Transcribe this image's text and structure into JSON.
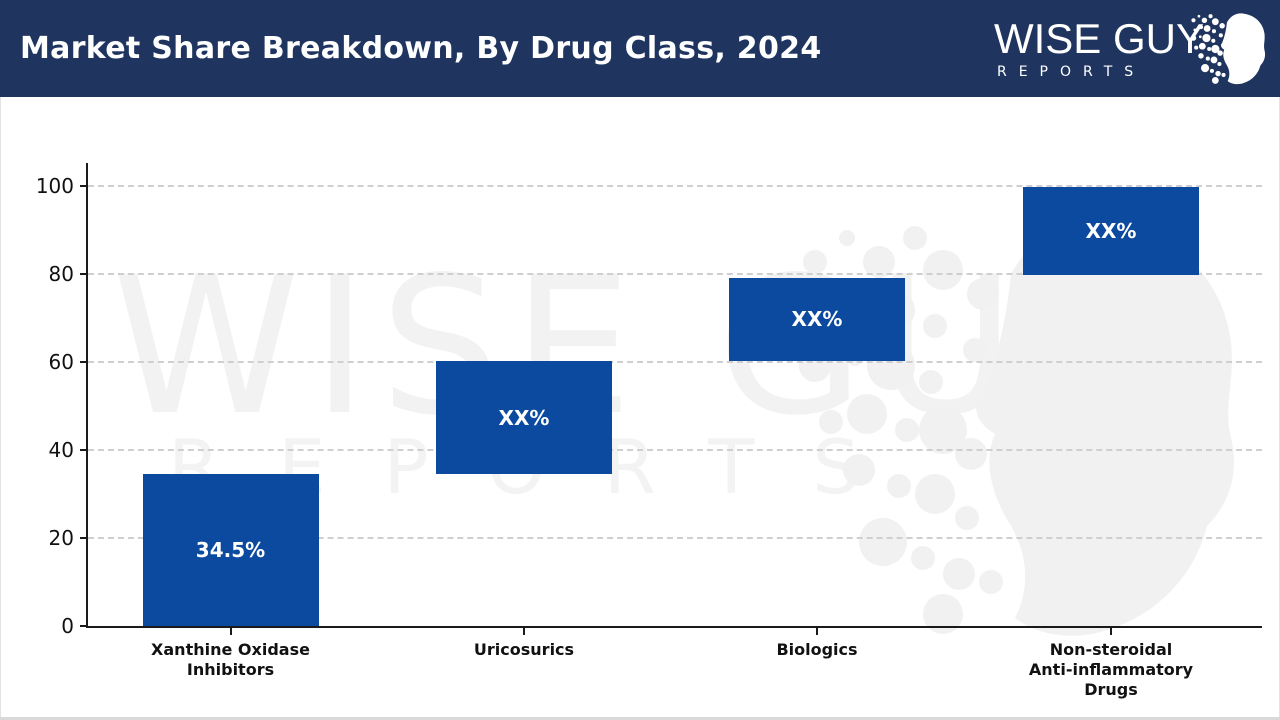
{
  "header": {
    "title": "Market Share Breakdown, By Drug Class, 2024",
    "logo": {
      "wordmark": "WISE GUY",
      "sub": "REPORTS"
    }
  },
  "watermark": {
    "wordmark": "WISE GUY",
    "sub": "REPORTS"
  },
  "colors": {
    "header_bg": "#1f3560",
    "bar": "#0b4a9e",
    "bar_label": "#ffffff",
    "axis": "#1a1a1a",
    "grid": "#cfcfcf",
    "watermark": "#f2f2f2"
  },
  "chart_data": {
    "type": "bar",
    "subtype": "waterfall",
    "title": "Market Share Breakdown, By Drug Class, 2024",
    "unit": "%",
    "ylim": [
      0,
      100
    ],
    "yticks": [
      0,
      20,
      40,
      60,
      80,
      100
    ],
    "grid": {
      "horizontal": true,
      "style": "dashed"
    },
    "legend": null,
    "categories": [
      "Xanthine Oxidase Inhibitors",
      "Uricosurics",
      "Biologics",
      "Non-steroidal Anti-inflammatory Drugs"
    ],
    "category_label_lines": [
      [
        "Xanthine Oxidase",
        "Inhibitors"
      ],
      [
        "Uricosurics"
      ],
      [
        "Biologics"
      ],
      [
        "Non-steroidal",
        "Anti-inflammatory",
        "Drugs"
      ]
    ],
    "segments": [
      {
        "from": 0,
        "to": 34.5,
        "label": "34.5%"
      },
      {
        "from": 34.5,
        "to": 60.2,
        "label": "XX%"
      },
      {
        "from": 60.2,
        "to": 79.2,
        "label": "XX%"
      },
      {
        "from": 79.8,
        "to": 99.8,
        "label": "XX%"
      }
    ]
  }
}
